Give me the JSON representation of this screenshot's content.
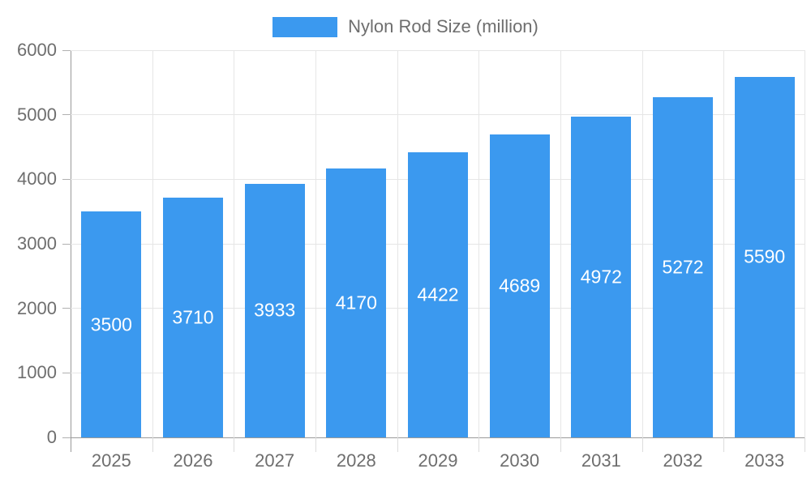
{
  "chart_data": {
    "type": "bar",
    "title": "Nylon Rod Size (million)",
    "legend": {
      "label": "Nylon Rod Size (million)",
      "position": "top"
    },
    "categories": [
      "2025",
      "2026",
      "2027",
      "2028",
      "2029",
      "2030",
      "2031",
      "2032",
      "2033"
    ],
    "series": [
      {
        "name": "Nylon Rod Size (million)",
        "values": [
          3500,
          3710,
          3933,
          4170,
          4422,
          4689,
          4972,
          5272,
          5590
        ]
      }
    ],
    "value_labels": [
      "3500",
      "3710",
      "3933",
      "4170",
      "4422",
      "4689",
      "4972",
      "5272",
      "5590"
    ],
    "xlabel": "",
    "ylabel": "",
    "ylim": [
      0,
      6000
    ],
    "y_ticks": [
      0,
      1000,
      2000,
      3000,
      4000,
      5000,
      6000
    ],
    "grid": "on",
    "colors": {
      "bar": "#3b99ef",
      "value_label": "#ffffff",
      "grid_line": "#e6e6e6",
      "axis_line": "#9a9a9a",
      "tick_mark": "#b0b0b0",
      "tick_text": "#6e6e6e",
      "background": "#ffffff"
    }
  }
}
